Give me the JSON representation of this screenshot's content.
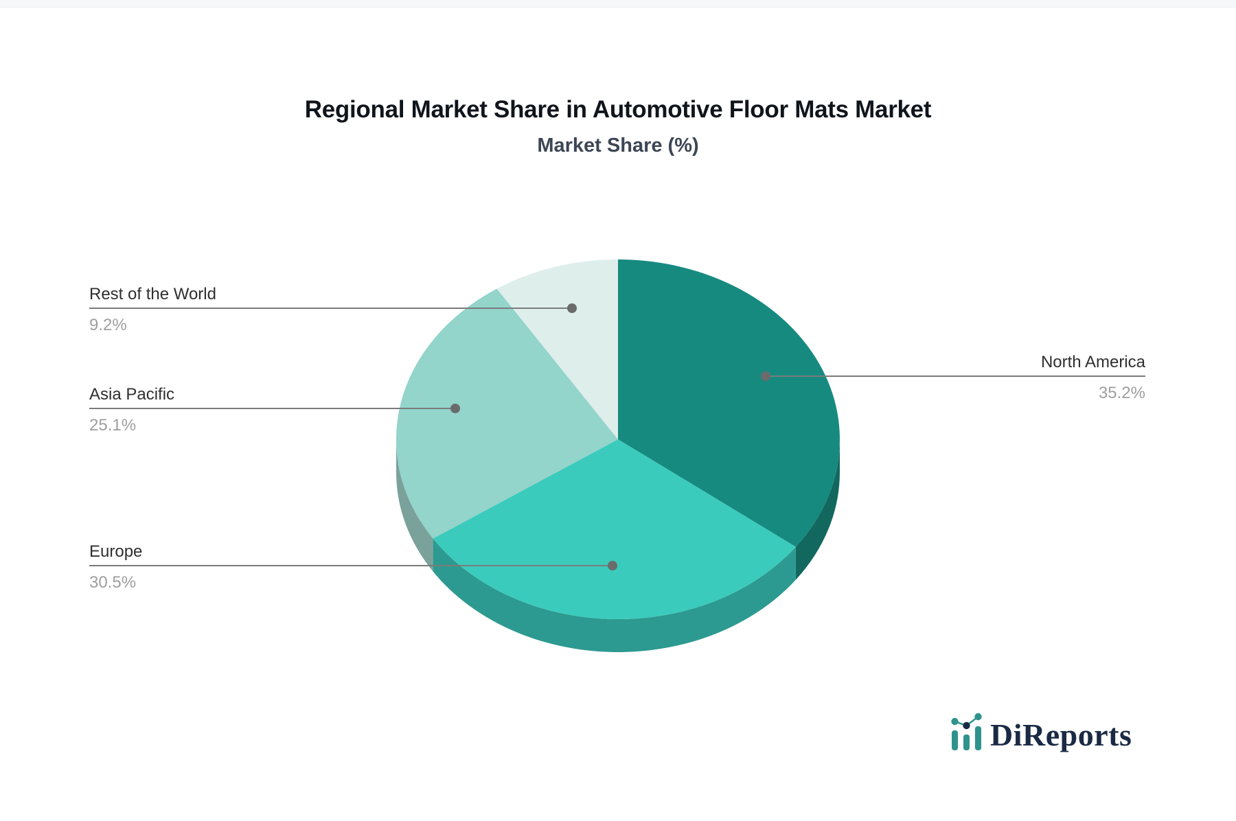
{
  "title": "Regional Market Share in Automotive Floor Mats Market",
  "subtitle": "Market Share (%)",
  "chart_data": {
    "type": "pie",
    "style": "3d",
    "title": "Regional Market Share in Automotive Floor Mats Market",
    "subtitle": "Market Share (%)",
    "unit": "%",
    "start_angle_deg": 0,
    "direction": "clockwise",
    "legend": "leader-line-labels",
    "slices": [
      {
        "label": "North America",
        "value": 35.2,
        "pct_label": "35.2%",
        "color": "#178a80",
        "side_color": "#12685f"
      },
      {
        "label": "Europe",
        "value": 30.5,
        "pct_label": "30.5%",
        "color": "#3bcbbc",
        "side_color": "#2c9a90"
      },
      {
        "label": "Asia Pacific",
        "value": 25.1,
        "pct_label": "25.1%",
        "color": "#93d4cb",
        "side_color": "#7aa29b"
      },
      {
        "label": "Rest of the World",
        "value": 9.2,
        "pct_label": "9.2%",
        "color": "#deeeeb",
        "side_color": "#c3d9d5"
      }
    ]
  },
  "leader": {
    "line_color": "#7b7b7b",
    "dot_color": "#6b6b6b"
  },
  "logo": {
    "text": "DiReports",
    "icon": "bar-chart-icon",
    "icon_color": "#2f938d",
    "text_color": "#1b2a44"
  }
}
